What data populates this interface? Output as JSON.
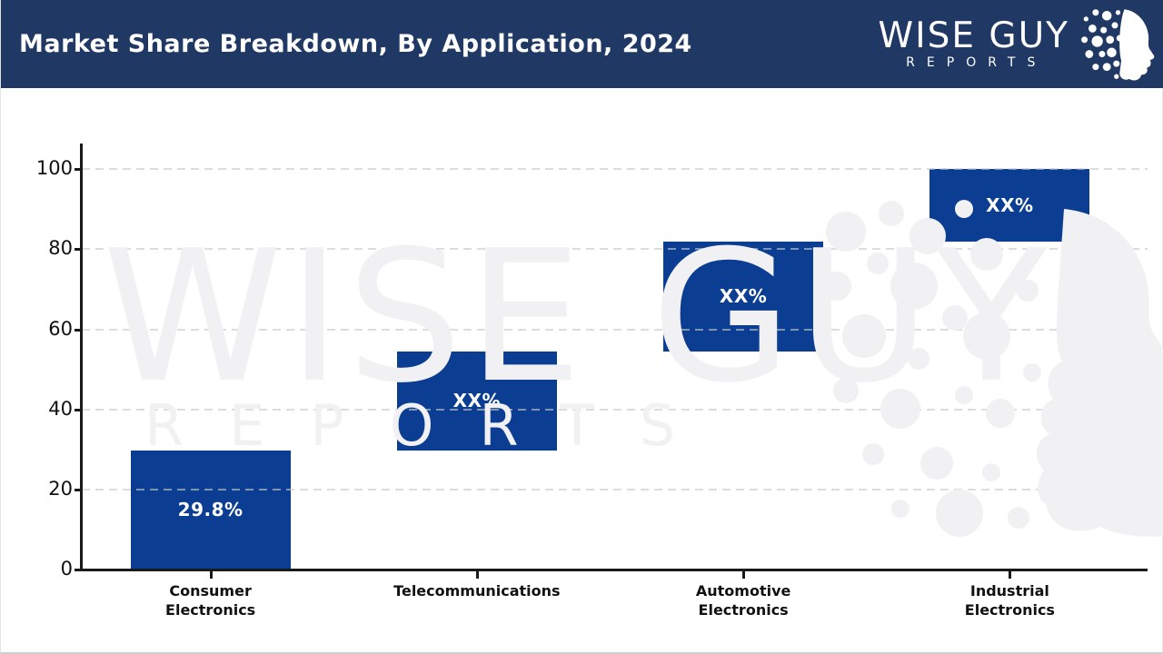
{
  "header": {
    "title": "Market Share Breakdown, By Application, 2024",
    "logo": {
      "line1": "WISE GUY",
      "line2": "REPORTS"
    },
    "bg_color": "#203864"
  },
  "watermark": {
    "line1": "WISE GUY",
    "line2": "REPORTS"
  },
  "chart_data": {
    "type": "bar",
    "variant": "waterfall-stacked-segments",
    "title": "Market Share Breakdown, By Application, 2024",
    "categories": [
      "Consumer Electronics",
      "Telecommunications",
      "Automotive Electronics",
      "Industrial Electronics"
    ],
    "category_label_lines": [
      [
        "Consumer",
        "Electronics"
      ],
      [
        "Telecommunications"
      ],
      [
        "Automotive",
        "Electronics"
      ],
      [
        "Industrial",
        "Electronics"
      ]
    ],
    "segments": [
      {
        "category": "Consumer Electronics",
        "start": 0,
        "end": 29.8,
        "value": 29.8,
        "label": "29.8%"
      },
      {
        "category": "Telecommunications",
        "start": 29.8,
        "end": 54.5,
        "value": 24.7,
        "label": "XX%"
      },
      {
        "category": "Automotive Electronics",
        "start": 54.5,
        "end": 82.0,
        "value": 27.5,
        "label": "XX%"
      },
      {
        "category": "Industrial Electronics",
        "start": 82.0,
        "end": 100,
        "value": 18.0,
        "label": "XX%"
      }
    ],
    "y_ticks": [
      0,
      20,
      40,
      60,
      80,
      100
    ],
    "ylim": [
      0,
      106
    ],
    "grid": "dashed-horizontal",
    "legend": "none",
    "bar_color": "#0b3e92",
    "bar_label_color": "#ffffff",
    "axis_color": "#1a1a1a"
  }
}
